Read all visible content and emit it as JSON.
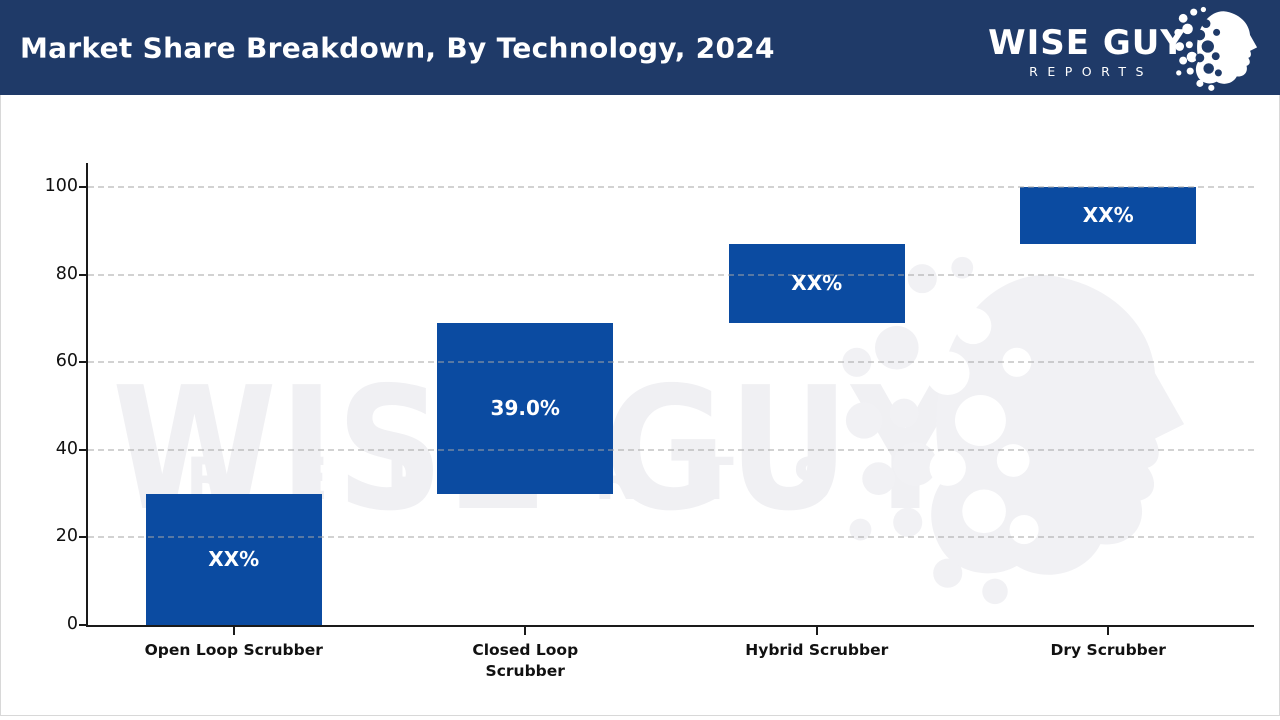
{
  "header": {
    "title": "Market Share Breakdown, By Technology, 2024",
    "logo": {
      "brand": "WISE GUY",
      "sub": "REPORTS"
    }
  },
  "watermark": {
    "brand": "WISE GUY",
    "sub": "REPORTS"
  },
  "chart_data": {
    "type": "bar",
    "subtype": "floating-segment-waterfall",
    "title": "Market Share Breakdown, By Technology, 2024",
    "categories": [
      "Open Loop Scrubber",
      "Closed Loop Scrubber",
      "Hybrid Scrubber",
      "Dry Scrubber"
    ],
    "category_lines": [
      [
        "Open Loop Scrubber"
      ],
      [
        "Closed Loop",
        "Scrubber"
      ],
      [
        "Hybrid Scrubber"
      ],
      [
        "Dry Scrubber"
      ]
    ],
    "series": [
      {
        "name": "Market share (%)",
        "segments": [
          {
            "category": "Open Loop Scrubber",
            "start": 0,
            "end": 30,
            "label": "XX%"
          },
          {
            "category": "Closed Loop Scrubber",
            "start": 30,
            "end": 69,
            "label": "39.0%"
          },
          {
            "category": "Hybrid Scrubber",
            "start": 69,
            "end": 87,
            "label": "XX%"
          },
          {
            "category": "Dry Scrubber",
            "start": 87,
            "end": 100,
            "label": "XX%"
          }
        ]
      }
    ],
    "xlabel": "",
    "ylabel": "",
    "ylim": [
      0,
      105
    ],
    "yticks": [
      0,
      20,
      40,
      60,
      80,
      100
    ],
    "grid": "horizontal-dashed",
    "legend": "none"
  },
  "colors": {
    "header_bg": "#1f3a68",
    "bar": "#0b4ba1",
    "bar_label": "#ffffff",
    "axis": "#1a1a1a",
    "grid": "#c9c9c9",
    "watermark": "#f0f0f3"
  }
}
